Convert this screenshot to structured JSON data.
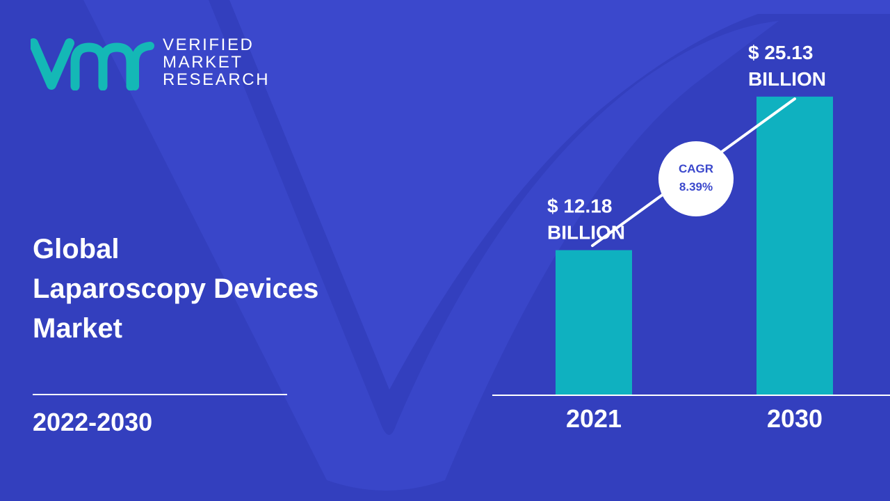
{
  "colors": {
    "background": "#3b48cc",
    "background_shape": "#2e39b3",
    "bar": "#0fb1c0",
    "logo_teal": "#14b8b6",
    "text": "#ffffff",
    "cagr_text": "#3b48cc"
  },
  "brand": {
    "logo_icon": "vmr-logo-icon",
    "line1": "VERIFIED",
    "line2": "MARKET",
    "line3": "RESEARCH"
  },
  "title": {
    "line1": "Global",
    "line2": "Laparoscopy Devices",
    "line3": "Market"
  },
  "period": "2022-2030",
  "cagr": {
    "label": "CAGR",
    "value": "8.39%"
  },
  "chart_data": {
    "type": "bar",
    "categories": [
      "2021",
      "2030"
    ],
    "values": [
      12.18,
      25.13
    ],
    "value_labels": [
      {
        "line1": "$ 12.18",
        "line2": "BILLION"
      },
      {
        "line1": "$ 25.13",
        "line2": "BILLION"
      }
    ],
    "ylim": [
      0,
      27
    ],
    "grid": false
  }
}
